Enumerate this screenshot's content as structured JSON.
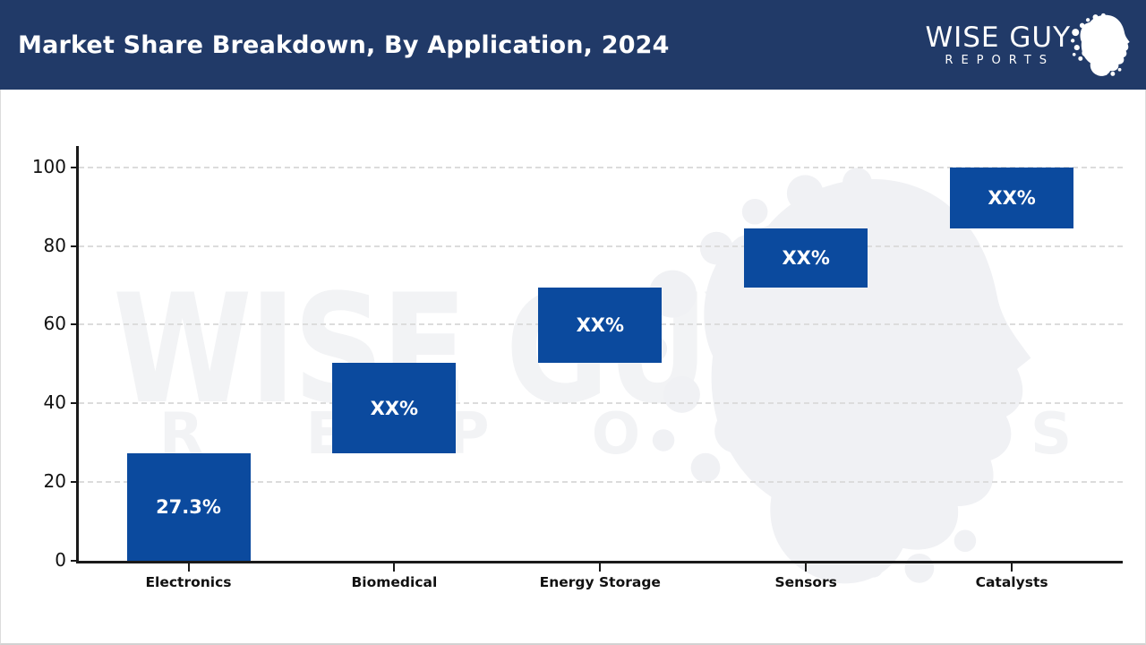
{
  "header": {
    "title": "Market Share Breakdown, By Application, 2024",
    "bg_color": "#213a68",
    "logo": {
      "line1": "WISE GUY",
      "line2": "REPORTS"
    }
  },
  "watermark": {
    "line1": "WISE GUY",
    "line2": "R E P O R T S"
  },
  "chart_data": {
    "type": "bar",
    "subtype": "waterfall-floating-bars",
    "title": "Market Share Breakdown, By Application, 2024",
    "categories": [
      "Electronics",
      "Biomedical",
      "Energy Storage",
      "Sensors",
      "Catalysts"
    ],
    "segments": [
      {
        "category": "Electronics",
        "start": 0,
        "end": 27.3,
        "label": "27.3%"
      },
      {
        "category": "Biomedical",
        "start": 27.3,
        "end": 50.2,
        "label": "XX%"
      },
      {
        "category": "Energy Storage",
        "start": 50.2,
        "end": 69.4,
        "label": "XX%"
      },
      {
        "category": "Sensors",
        "start": 69.4,
        "end": 84.5,
        "label": "XX%"
      },
      {
        "category": "Catalysts",
        "start": 84.5,
        "end": 100,
        "label": "XX%"
      }
    ],
    "y_ticks": [
      0,
      20,
      40,
      60,
      80,
      100
    ],
    "ylim": [
      0,
      105
    ],
    "xlabel": "",
    "ylabel": "",
    "grid": "horizontal-dashed",
    "legend": "none",
    "bar_color": "#0b4a9e",
    "bar_label_color": "#ffffff",
    "axis_color": "#1a1a1a"
  }
}
